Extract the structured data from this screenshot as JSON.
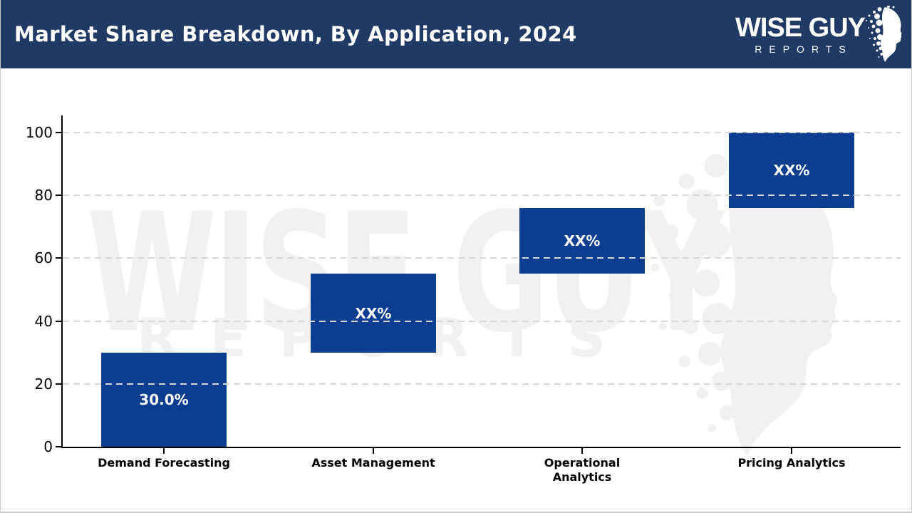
{
  "header": {
    "title": "Market Share Breakdown, By Application, 2024",
    "logo": {
      "name_line": "WISE GUY",
      "sub_line": "REPORTS"
    }
  },
  "watermark": {
    "name_line": "WISE GUY",
    "sub_line": "REPORTS"
  },
  "chart_data": {
    "type": "bar",
    "subtype": "waterfall-breakdown",
    "title": "Market Share Breakdown, By Application, 2024",
    "categories": [
      "Demand Forecasting",
      "Asset Management",
      "Operational Analytics",
      "Pricing Analytics"
    ],
    "xtick_lines": [
      [
        "Demand Forecasting"
      ],
      [
        "Asset Management"
      ],
      [
        "Operational",
        "Analytics"
      ],
      [
        "Pricing Analytics"
      ]
    ],
    "segments": [
      {
        "category": "Demand Forecasting",
        "start": 0,
        "end": 30,
        "label": "30.0%"
      },
      {
        "category": "Asset Management",
        "start": 30,
        "end": 55,
        "label": "XX%"
      },
      {
        "category": "Operational Analytics",
        "start": 55,
        "end": 76,
        "label": "XX%"
      },
      {
        "category": "Pricing Analytics",
        "start": 76,
        "end": 100,
        "label": "XX%"
      }
    ],
    "xlabel": "",
    "ylabel": "",
    "ylim": [
      0,
      100
    ],
    "yticks": [
      0,
      20,
      40,
      60,
      80,
      100
    ],
    "grid": "horizontal-dashed",
    "legend": null
  },
  "colors": {
    "header_bg": "#203a66",
    "title_text": "#ffffff",
    "bar": "#0b3d91",
    "bar_label": "#ffffff",
    "grid": "#d8d8d8",
    "axis": "#000000",
    "watermark": "#f1f1f1",
    "page_border": "#cccccc"
  }
}
